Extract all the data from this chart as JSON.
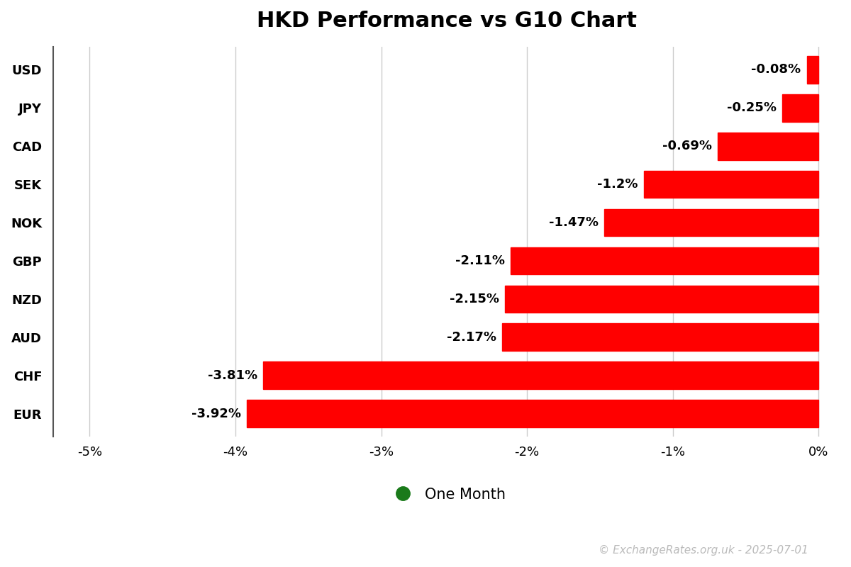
{
  "title": "HKD Performance vs G10 Chart",
  "currencies": [
    "EUR",
    "CHF",
    "AUD",
    "NZD",
    "GBP",
    "NOK",
    "SEK",
    "CAD",
    "JPY",
    "USD"
  ],
  "values": [
    -3.92,
    -3.81,
    -2.17,
    -2.15,
    -2.11,
    -1.47,
    -1.2,
    -0.69,
    -0.25,
    -0.08
  ],
  "labels": [
    "-3.92%",
    "-3.81%",
    "-2.17%",
    "-2.15%",
    "-2.11%",
    "-1.47%",
    "-1.2%",
    "-0.69%",
    "-0.25%",
    "-0.08%"
  ],
  "bar_color": "#ff0000",
  "background_color": "#ffffff",
  "title_fontsize": 22,
  "label_fontsize": 13,
  "tick_fontsize": 13,
  "xlim": [
    -5.25,
    0.15
  ],
  "xticks": [
    -5,
    -4,
    -3,
    -2,
    -1,
    0
  ],
  "xtick_labels": [
    "-5%",
    "-4%",
    "-3%",
    "-2%",
    "-1%",
    "0%"
  ],
  "legend_label": "One Month",
  "legend_color": "#1a7a1a",
  "watermark": "© ExchangeRates.org.uk - 2025-07-01",
  "watermark_color": "#bbbbbb",
  "grid_color": "#cccccc",
  "bar_height": 0.72,
  "left_spine_color": "#555555"
}
